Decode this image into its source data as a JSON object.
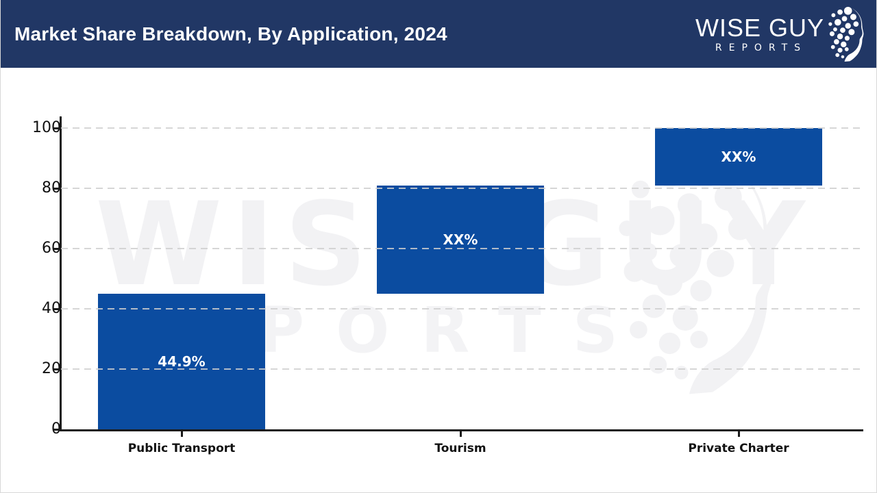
{
  "header": {
    "title": "Market Share Breakdown, By Application, 2024",
    "background_color": "#213765",
    "logo": {
      "line1": "WISE GUY",
      "line2": "REPORTS"
    }
  },
  "watermark": {
    "line1": "WISE GUY",
    "line2": "REPORTS"
  },
  "chart_data": {
    "type": "bar",
    "subtype": "waterfall",
    "title": "Market Share Breakdown, By Application, 2024",
    "categories": [
      "Public Transport",
      "Tourism",
      "Private Charter"
    ],
    "series": [
      {
        "name": "Market Share",
        "segments": [
          {
            "category": "Public Transport",
            "start": 0,
            "end": 44.9,
            "label": "44.9%"
          },
          {
            "category": "Tourism",
            "start": 44.9,
            "end": 80.9,
            "label": "XX%"
          },
          {
            "category": "Private Charter",
            "start": 80.9,
            "end": 100,
            "label": "XX%"
          }
        ]
      }
    ],
    "xlabel": "",
    "ylabel": "",
    "ylim": [
      0,
      100
    ],
    "yticks": [
      0,
      20,
      40,
      60,
      80,
      100
    ],
    "grid": "horizontal-dashed",
    "legend": "none",
    "bar_color": "#0b4ca0",
    "bar_label_color": "#ffffff",
    "axis_color": "#1a1a1a",
    "gridline_color": "#cfcfcf"
  }
}
